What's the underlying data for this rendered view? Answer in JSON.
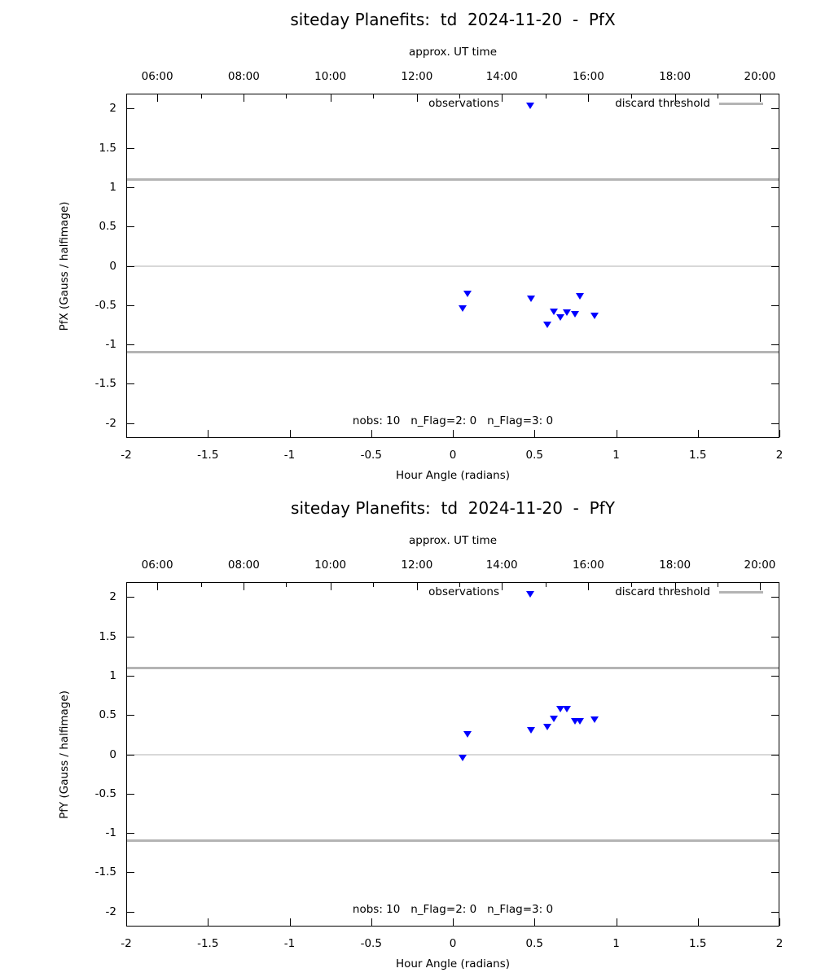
{
  "figure_background": "#ffffff",
  "chart_data": [
    {
      "type": "scatter",
      "title": "siteday Planefits:  td  2024-11-20  -  PfX",
      "x2label": "approx. UT time",
      "xlabel": "Hour Angle (radians)",
      "ylabel": "PfX (Gauss / halfimage)",
      "annotation": "nobs: 10   n_Flag=2: 0   n_Flag=3: 0",
      "xlim": [
        -2,
        2
      ],
      "ylim": [
        -2.19,
        2.19
      ],
      "grid": false,
      "legend_position": "top-inside",
      "legend": [
        {
          "label": "observations",
          "type": "marker"
        },
        {
          "label": "discard threshold",
          "type": "line"
        }
      ],
      "x_ticks": [
        {
          "v": -2,
          "label": "-2"
        },
        {
          "v": -1.5,
          "label": "-1.5"
        },
        {
          "v": -1,
          "label": "-1"
        },
        {
          "v": -0.5,
          "label": "-0.5"
        },
        {
          "v": 0,
          "label": "0"
        },
        {
          "v": 0.5,
          "label": "0.5"
        },
        {
          "v": 1,
          "label": "1"
        },
        {
          "v": 1.5,
          "label": "1.5"
        },
        {
          "v": 2,
          "label": "2"
        }
      ],
      "y_ticks": [
        {
          "v": 2,
          "label": "2"
        },
        {
          "v": 1.5,
          "label": "1.5"
        },
        {
          "v": 1,
          "label": "1"
        },
        {
          "v": 0.5,
          "label": "0.5"
        },
        {
          "v": 0,
          "label": "0"
        },
        {
          "v": -0.5,
          "label": "-0.5"
        },
        {
          "v": -1,
          "label": "-1"
        },
        {
          "v": -1.5,
          "label": "-1.5"
        },
        {
          "v": -2,
          "label": "-2"
        }
      ],
      "x2_ticks": [
        {
          "v": -1.81,
          "label": "06:00"
        },
        {
          "v": -1.28,
          "label": "08:00"
        },
        {
          "v": -0.75,
          "label": "10:00"
        },
        {
          "v": -0.22,
          "label": "12:00"
        },
        {
          "v": 0.3,
          "label": "14:00"
        },
        {
          "v": 0.83,
          "label": "16:00"
        },
        {
          "v": 1.36,
          "label": "18:00"
        },
        {
          "v": 1.88,
          "label": "20:00"
        }
      ],
      "x2_minor_ticks": [
        -1.54,
        -1.02,
        -0.49,
        0.04,
        0.57,
        1.09,
        1.62
      ],
      "threshold_lines": [
        1.1,
        -1.1
      ],
      "zero_line": 0,
      "threshold_color": "#b4b4b4",
      "zero_line_color": "#d8d8d8",
      "series": [
        {
          "name": "observations",
          "marker": "triangle-down",
          "color": "#0000ff",
          "points": [
            [
              0.06,
              -0.54
            ],
            [
              0.09,
              -0.36
            ],
            [
              0.48,
              -0.42
            ],
            [
              0.58,
              -0.75
            ],
            [
              0.62,
              -0.59
            ],
            [
              0.66,
              -0.66
            ],
            [
              0.7,
              -0.6
            ],
            [
              0.75,
              -0.62
            ],
            [
              0.78,
              -0.39
            ],
            [
              0.87,
              -0.64
            ]
          ]
        }
      ]
    },
    {
      "type": "scatter",
      "title": "siteday Planefits:  td  2024-11-20  -  PfY",
      "x2label": "approx. UT time",
      "xlabel": "Hour Angle (radians)",
      "ylabel": "PfY (Gauss / halfimage)",
      "annotation": "nobs: 10   n_Flag=2: 0   n_Flag=3: 0",
      "xlim": [
        -2,
        2
      ],
      "ylim": [
        -2.19,
        2.19
      ],
      "grid": false,
      "legend_position": "top-inside",
      "legend": [
        {
          "label": "observations",
          "type": "marker"
        },
        {
          "label": "discard threshold",
          "type": "line"
        }
      ],
      "x_ticks": [
        {
          "v": -2,
          "label": "-2"
        },
        {
          "v": -1.5,
          "label": "-1.5"
        },
        {
          "v": -1,
          "label": "-1"
        },
        {
          "v": -0.5,
          "label": "-0.5"
        },
        {
          "v": 0,
          "label": "0"
        },
        {
          "v": 0.5,
          "label": "0.5"
        },
        {
          "v": 1,
          "label": "1"
        },
        {
          "v": 1.5,
          "label": "1.5"
        },
        {
          "v": 2,
          "label": "2"
        }
      ],
      "y_ticks": [
        {
          "v": 2,
          "label": "2"
        },
        {
          "v": 1.5,
          "label": "1.5"
        },
        {
          "v": 1,
          "label": "1"
        },
        {
          "v": 0.5,
          "label": "0.5"
        },
        {
          "v": 0,
          "label": "0"
        },
        {
          "v": -0.5,
          "label": "-0.5"
        },
        {
          "v": -1,
          "label": "-1"
        },
        {
          "v": -1.5,
          "label": "-1.5"
        },
        {
          "v": -2,
          "label": "-2"
        }
      ],
      "x2_ticks": [
        {
          "v": -1.81,
          "label": "06:00"
        },
        {
          "v": -1.28,
          "label": "08:00"
        },
        {
          "v": -0.75,
          "label": "10:00"
        },
        {
          "v": -0.22,
          "label": "12:00"
        },
        {
          "v": 0.3,
          "label": "14:00"
        },
        {
          "v": 0.83,
          "label": "16:00"
        },
        {
          "v": 1.36,
          "label": "18:00"
        },
        {
          "v": 1.88,
          "label": "20:00"
        }
      ],
      "x2_minor_ticks": [
        -1.54,
        -1.02,
        -0.49,
        0.04,
        0.57,
        1.09,
        1.62
      ],
      "threshold_lines": [
        1.1,
        -1.1
      ],
      "zero_line": 0,
      "threshold_color": "#b4b4b4",
      "zero_line_color": "#d8d8d8",
      "series": [
        {
          "name": "observations",
          "marker": "triangle-down",
          "color": "#0000ff",
          "points": [
            [
              0.06,
              -0.05
            ],
            [
              0.09,
              0.25
            ],
            [
              0.48,
              0.31
            ],
            [
              0.58,
              0.35
            ],
            [
              0.62,
              0.45
            ],
            [
              0.66,
              0.57
            ],
            [
              0.7,
              0.57
            ],
            [
              0.75,
              0.42
            ],
            [
              0.78,
              0.42
            ],
            [
              0.87,
              0.44
            ]
          ]
        }
      ]
    }
  ]
}
